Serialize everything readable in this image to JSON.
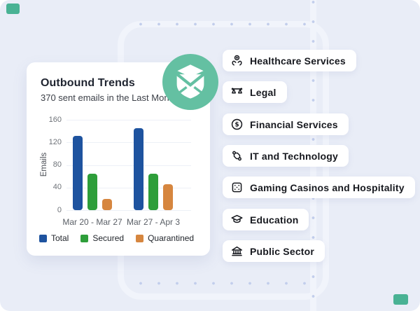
{
  "card": {
    "title": "Outbound Trends",
    "subtitle": "370 sent emails in the Last Month"
  },
  "chart_data": {
    "type": "bar",
    "title": "Outbound Trends",
    "subtitle": "370 sent emails in the Last Month",
    "xlabel": "",
    "ylabel": "Emails",
    "categories": [
      "Mar 20 - Mar 27",
      "Mar 27 - Apr 3"
    ],
    "series": [
      {
        "name": "Total",
        "color": "#1e539f",
        "values": [
          131,
          145
        ]
      },
      {
        "name": "Secured",
        "color": "#2e9e3a",
        "values": [
          65,
          65
        ]
      },
      {
        "name": "Quarantined",
        "color": "#d6863f",
        "values": [
          20,
          46
        ]
      }
    ],
    "yticks": [
      0,
      40,
      80,
      120,
      160
    ],
    "ylim": [
      0,
      160
    ],
    "grid": true,
    "legend_position": "bottom"
  },
  "badge": {
    "icon": "envelope-icon",
    "color": "#64c0a2"
  },
  "industries": [
    {
      "label": "Healthcare Services",
      "icon": "healthcare-hands-icon"
    },
    {
      "label": "Legal",
      "icon": "scales-icon"
    },
    {
      "label": "Financial Services",
      "icon": "dollar-circle-icon"
    },
    {
      "label": "IT and Technology",
      "icon": "network-route-icon"
    },
    {
      "label": "Gaming Casinos and Hospitality",
      "icon": "dice-icon"
    },
    {
      "label": "Education",
      "icon": "graduation-cap-icon"
    },
    {
      "label": "Public Sector",
      "icon": "bank-icon"
    }
  ],
  "decor_colors": {
    "background": "#e9edf7",
    "pipe": "#f1f4fb",
    "dots": "#c2ceec",
    "corner_squares": "#49b294"
  }
}
